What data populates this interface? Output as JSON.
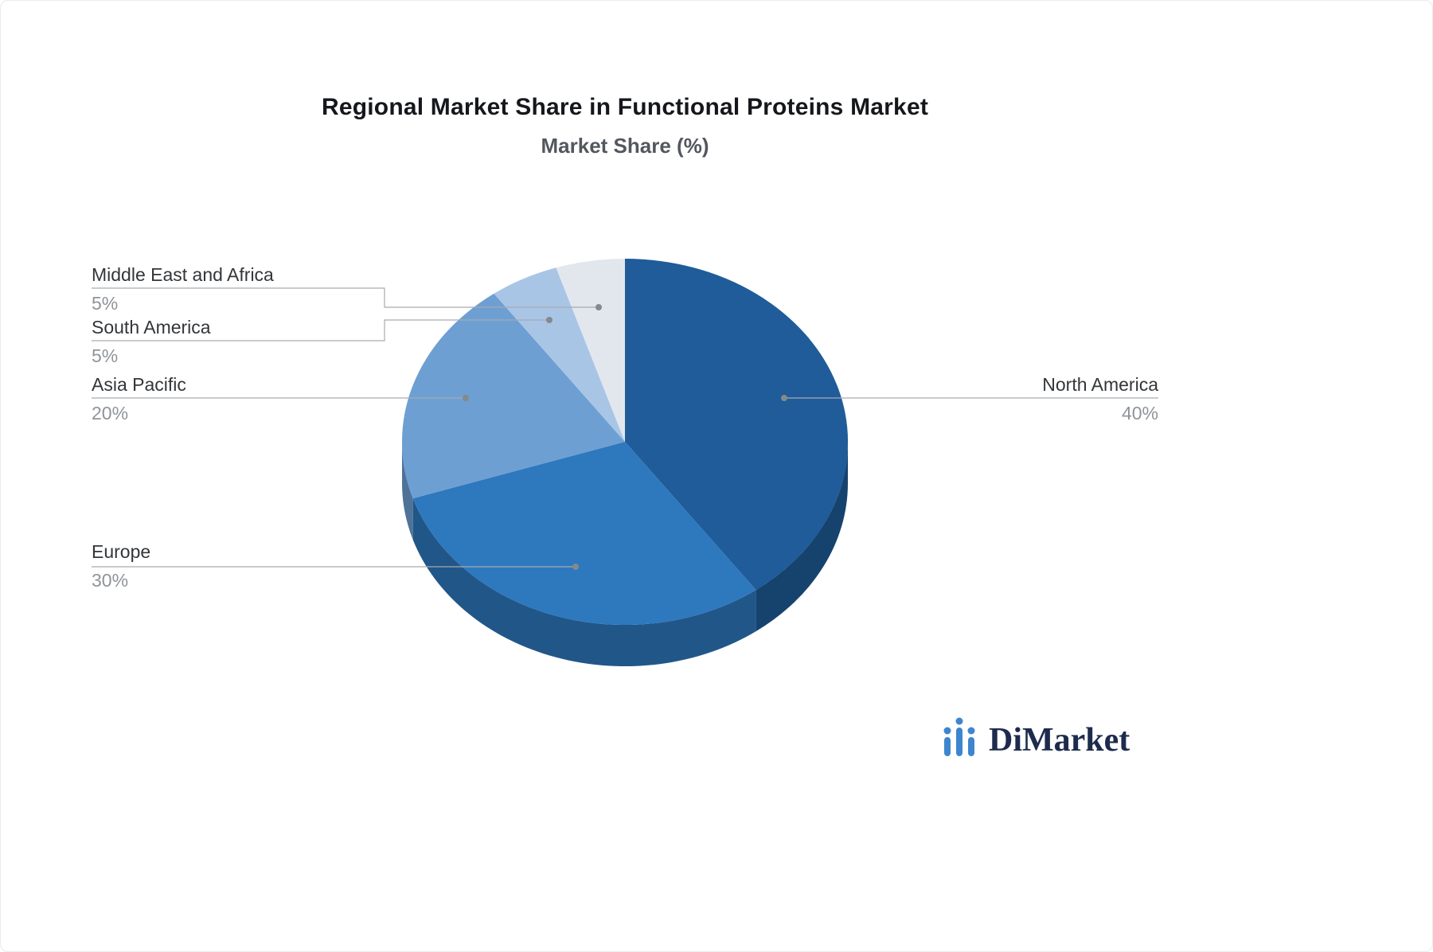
{
  "header": {
    "title": "Regional Market Share in Functional Proteins Market",
    "subtitle": "Market Share (%)"
  },
  "brand": {
    "name": "DiMarket",
    "icon": "dimarket-logo-icon",
    "wordmark_color": "#1d2b4d",
    "icon_color": "#3d86cf"
  },
  "chart_data": {
    "type": "pie",
    "is_3d": true,
    "title": "Regional Market Share in Functional Proteins Market",
    "subtitle": "Market Share (%)",
    "unit": "%",
    "direction": "clockwise",
    "start_angle_deg": 0,
    "legend": "none",
    "slices": [
      {
        "label": "North America",
        "value": 40,
        "display": "40%",
        "color": "#1f5c99"
      },
      {
        "label": "Europe",
        "value": 30,
        "display": "30%",
        "color": "#2e78be"
      },
      {
        "label": "Asia Pacific",
        "value": 20,
        "display": "20%",
        "color": "#6d9fd3"
      },
      {
        "label": "South America",
        "value": 5,
        "display": "5%",
        "color": "#a9c5e6"
      },
      {
        "label": "Middle East and Africa",
        "value": 5,
        "display": "5%",
        "color": "#e2e7ee"
      }
    ],
    "label_name_color": "#333639",
    "label_value_color": "#8f9499",
    "connector_color": "#a6aaae",
    "connector_dot_color": "#85898d"
  }
}
